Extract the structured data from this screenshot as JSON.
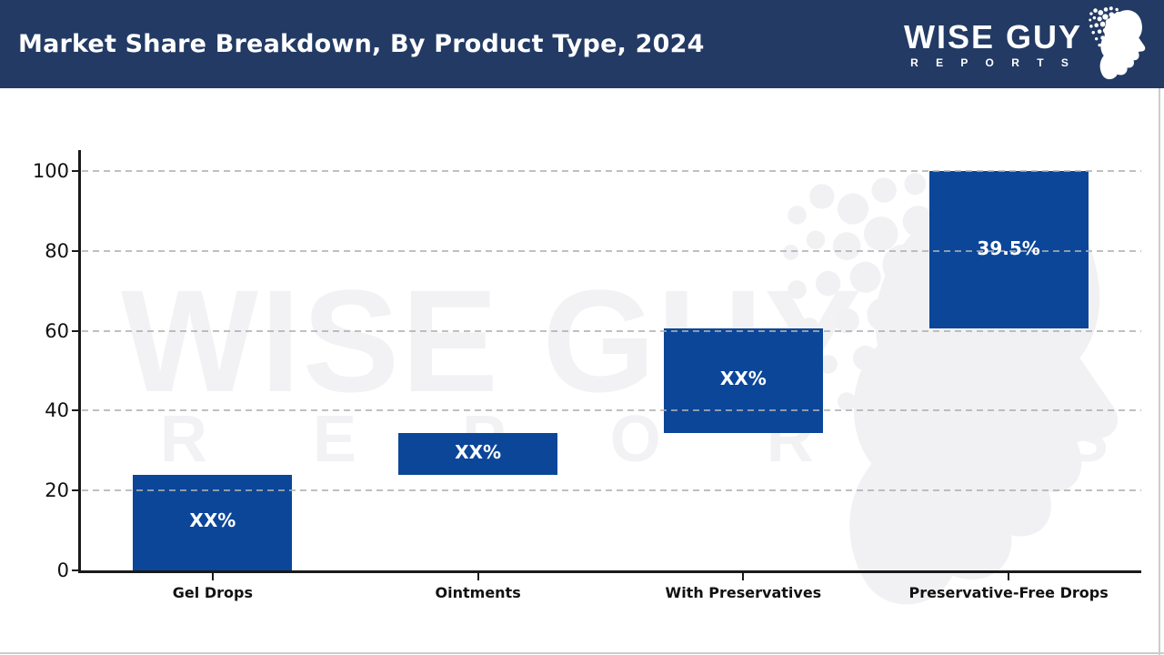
{
  "header": {
    "title": "Market Share Breakdown, By Product Type, 2024",
    "logo": {
      "name": "WISE GUY",
      "subname": "R E P O R T S"
    }
  },
  "watermark": {
    "line1": "WISE GUY",
    "line2": "R E P O R T S"
  },
  "chart_data": {
    "type": "bar",
    "subtype": "floating-waterfall",
    "title": "Market Share Breakdown, By Product Type, 2024",
    "categories": [
      "Gel Drops",
      "Ointments",
      "With Preservatives",
      "Preservative-Free Drops"
    ],
    "series": [
      {
        "name": "Market share (%)",
        "segments": [
          {
            "category": "Gel Drops",
            "start": 0,
            "end": 24,
            "label": "XX%"
          },
          {
            "category": "Ointments",
            "start": 24,
            "end": 34.5,
            "label": "XX%"
          },
          {
            "category": "With Preservatives",
            "start": 34.5,
            "end": 60.5,
            "label": "XX%"
          },
          {
            "category": "Preservative-Free Drops",
            "start": 60.5,
            "end": 100,
            "label": "39.5%"
          }
        ]
      }
    ],
    "xlabel": "",
    "ylabel": "",
    "ylim": [
      0,
      100
    ],
    "y_ticks": [
      0,
      20,
      40,
      60,
      80,
      100
    ],
    "grid": "horizontal-dashed",
    "legend": "none",
    "bar_color": "#0b4699",
    "bar_label_color": "#ffffff"
  },
  "colors": {
    "header_bg": "#223a64",
    "bar": "#0b4699",
    "grid": "#c8c8c8",
    "axis": "#1a1a1a",
    "watermark": "#f2f2f5",
    "frame": "#cccccc"
  }
}
